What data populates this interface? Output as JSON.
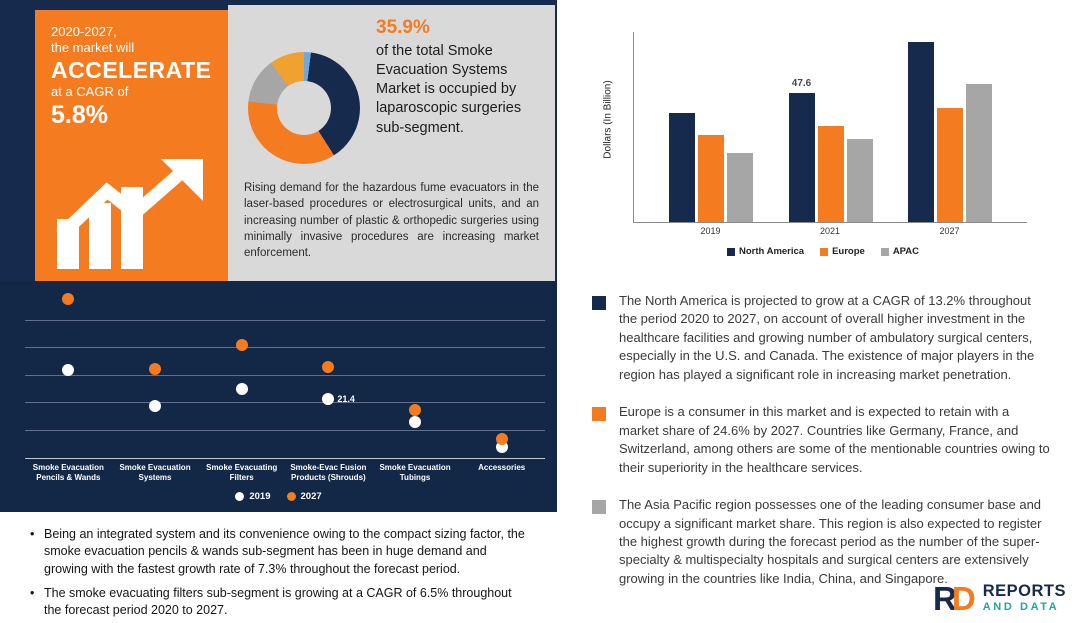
{
  "colors": {
    "orange": "#f47b20",
    "navy": "#152a4d",
    "panel_navy": "#132847",
    "gray": "#a6a6a6",
    "light_gray_card": "#d9d9d9",
    "amber": "#f0a22e",
    "light_blue": "#6fa8dc",
    "teal": "#1fa4a7"
  },
  "accelerate_box": {
    "line1": "2020-2027,",
    "line2": "the market will",
    "line3": "ACCELERATE",
    "line4": "at a CAGR of",
    "line5": "5.8%"
  },
  "donut_card": {
    "pct": "35.9%",
    "desc": "of the total Smoke Evacuation Systems Market is occupied by laparoscopic surgeries sub-segment.",
    "paragraph": "Rising demand for the hazardous fume evacuators in the laser-based procedures or electrosurgical units, and an increasing number of plastic & orthopedic surgeries using minimally invasive procedures are increasing market enforcement."
  },
  "left_bullets": [
    "Being an integrated system and its convenience owing to the compact sizing factor, the smoke evacuation pencils & wands sub-segment has been in huge demand and growing with the fastest growth rate of 7.3% throughout the forecast period.",
    "The smoke evacuating filters sub-segment is growing at a CAGR of 6.5% throughout the forecast period 2020 to 2027."
  ],
  "region_bullets": [
    {
      "color": "#152a4d",
      "text": "The North America is projected to grow at a CAGR of 13.2% throughout the period 2020 to 2027, on account of overall higher investment in the healthcare facilities and growing number of ambulatory surgical centers, especially in the U.S. and Canada. The existence of major players in the region has played a significant role in increasing market penetration."
    },
    {
      "color": "#f47b20",
      "text": "Europe is a consumer in this market and is expected to retain with a market share of 24.6% by 2027. Countries like Germany, France, and Switzerland, among others are some of the mentionable countries owing to their superiority in the healthcare services."
    },
    {
      "color": "#a6a6a6",
      "text": "The Asia Pacific region possesses one of the leading consumer base and occupy a significant market share. This region is also expected to register the highest growth during the forecast period as the number of the super-specialty & multispecialty hospitals and surgical centers are extensively growing in the countries like India, China, and Singapore."
    }
  ],
  "logo": {
    "mark_r": "R",
    "mark_d": "D",
    "line1": "REPORTS",
    "line2": "AND DATA"
  },
  "chart_data": [
    {
      "type": "pie",
      "subtype": "donut",
      "title": "Smoke Evacuation Systems Market sub-segment share",
      "annotation": "35.9% of the total Smoke Evacuation Systems Market is occupied by laparoscopic surgeries sub-segment.",
      "slices": [
        {
          "label": "",
          "value": 2,
          "color": "#6fa8dc"
        },
        {
          "label": "",
          "value": 39,
          "color": "#152a4d"
        },
        {
          "label": "laparoscopic surgeries",
          "value": 35.9,
          "color": "#f47b20"
        },
        {
          "label": "",
          "value": 13.1,
          "color": "#a6a6a6"
        },
        {
          "label": "",
          "value": 10,
          "color": "#f0a22e"
        }
      ]
    },
    {
      "type": "scatter",
      "title": "",
      "categories": [
        "Smoke Evacuation Pencils & Wands",
        "Smoke Evacuation Systems",
        "Smoke Evacuating Filters",
        "Smoke-Evac Fusion Products (Shrouds)",
        "Smoke Evacuation Tubings",
        "Accessories"
      ],
      "ylim": [
        0,
        60
      ],
      "gridlines": [
        10,
        20,
        30,
        40,
        50
      ],
      "series": [
        {
          "name": "2019",
          "color": "#ffffff",
          "values": [
            32,
            19,
            25,
            21.4,
            13,
            4
          ]
        },
        {
          "name": "2027",
          "color": "#f47b20",
          "values": [
            58,
            32.5,
            41,
            33,
            17.5,
            7
          ]
        }
      ],
      "point_labels": [
        {
          "series": "2019",
          "category_index": 3,
          "text": "21.4"
        }
      ],
      "legend_position": "bottom"
    },
    {
      "type": "bar",
      "title": "",
      "ylabel": "Dollars (In Billion)",
      "categories": [
        "2019",
        "2021",
        "2027"
      ],
      "ylim": [
        0,
        70
      ],
      "series": [
        {
          "name": "North America",
          "color": "#152a4d",
          "values": [
            40,
            47.6,
            66.5
          ]
        },
        {
          "name": "Europe",
          "color": "#f47b20",
          "values": [
            32,
            35.5,
            42
          ]
        },
        {
          "name": "APAC",
          "color": "#a6a6a6",
          "values": [
            25.5,
            30.5,
            51
          ]
        }
      ],
      "data_labels": [
        {
          "series": "North America",
          "category": "2021",
          "text": "47.6"
        }
      ],
      "legend_position": "bottom"
    }
  ]
}
